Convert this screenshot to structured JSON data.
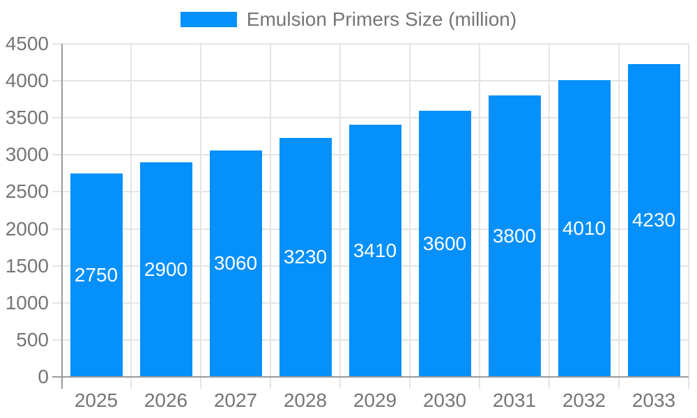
{
  "legend": {
    "label": "Emulsion Primers Size (million)"
  },
  "colors": {
    "bar": "#0590FB",
    "gridline": "#e4e4e4",
    "axis_line": "#9a9a9a",
    "axis_label": "#757575",
    "value_label": "#ffffff",
    "background": "#ffffff"
  },
  "chart_data": {
    "type": "bar",
    "title": "Emulsion Primers Size (million)",
    "categories": [
      "2025",
      "2026",
      "2027",
      "2028",
      "2029",
      "2030",
      "2031",
      "2032",
      "2033"
    ],
    "values": [
      2750,
      2900,
      3060,
      3230,
      3410,
      3600,
      3800,
      4010,
      4230
    ],
    "series": [
      {
        "name": "Emulsion Primers Size (million)",
        "values": [
          2750,
          2900,
          3060,
          3230,
          3410,
          3600,
          3800,
          4010,
          4230
        ]
      }
    ],
    "xlabel": "",
    "ylabel": "",
    "ylim": [
      0,
      4500
    ],
    "y_tick_step": 500,
    "y_ticks": [
      0,
      500,
      1000,
      1500,
      2000,
      2500,
      3000,
      3500,
      4000,
      4500
    ],
    "grid": "horizontal and vertical, light gray",
    "legend_position": "top-center",
    "value_labels": "white, centered inside bars"
  }
}
